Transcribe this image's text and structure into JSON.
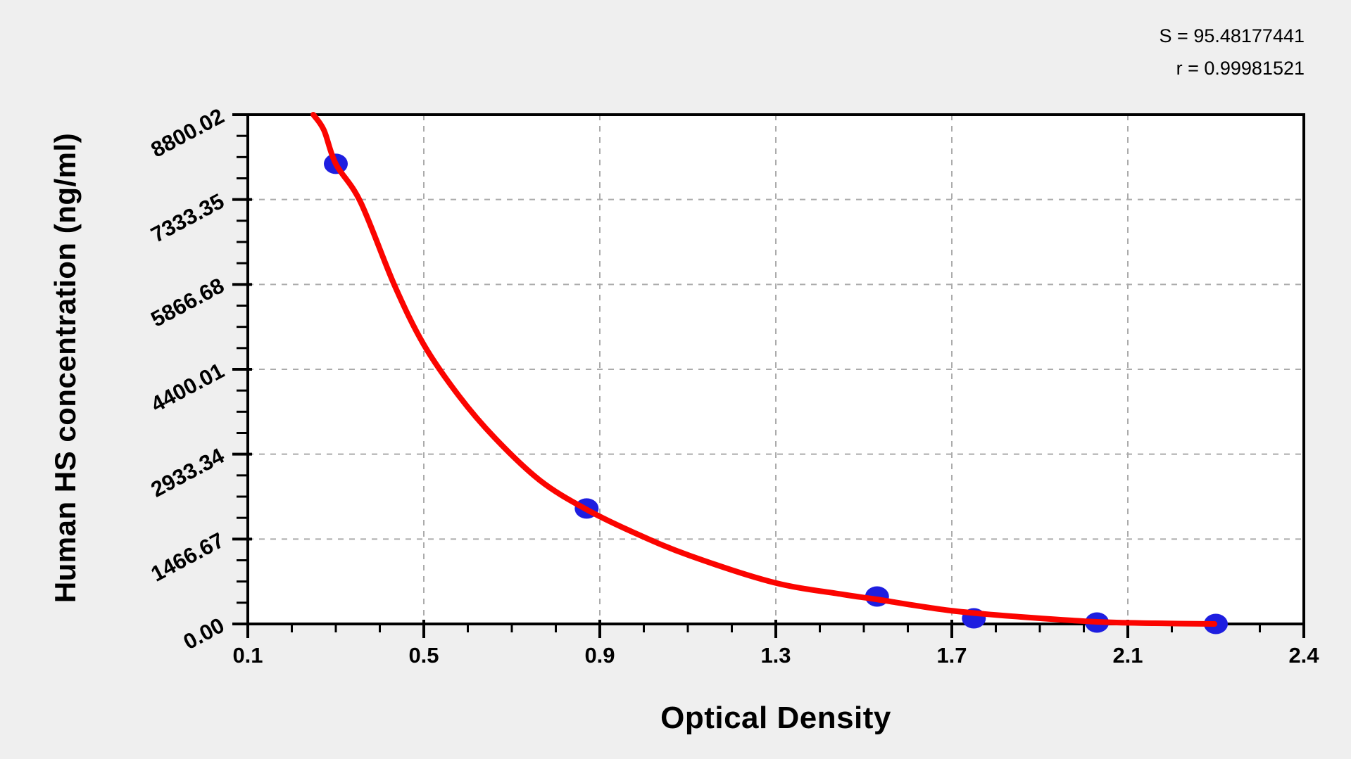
{
  "window": {
    "background": "#efefef",
    "plot_background": "#ffffff",
    "frame_color": "#000000"
  },
  "stats": {
    "s_label": "S = 95.48177441",
    "r_label": "r = 0.99981521"
  },
  "chart_data": {
    "type": "scatter",
    "title": "",
    "xlabel": "Optical Density",
    "ylabel": "Human HS concentration (ng/ml)",
    "x_tick_labels": [
      "0.1",
      "0.5",
      "0.9",
      "1.3",
      "1.7",
      "2.1",
      "2.4"
    ],
    "y_tick_labels": [
      "0.00",
      "1466.67",
      "2933.34",
      "4400.01",
      "5866.68",
      "7333.35",
      "8800.02"
    ],
    "xlim": [
      0.1,
      2.4
    ],
    "ylim": [
      0,
      8800.02
    ],
    "x_major_tick_count": 7,
    "y_major_tick_count": 7,
    "minor_intervals_per_major": 4,
    "grid": {
      "style": "dashed",
      "color": "#ababab",
      "on_major_ticks": true
    },
    "annotations": [
      "S = 95.48177441",
      "r = 0.99981521"
    ],
    "legend": "none",
    "series": [
      {
        "name": "standard-points",
        "type": "scatter",
        "color": "#1e1ee0",
        "x": [
          0.3,
          0.87,
          1.53,
          1.75,
          2.03,
          2.3
        ],
        "y": [
          7950,
          1995,
          474,
          97,
          24,
          0
        ]
      },
      {
        "name": "fitted-curve",
        "type": "line",
        "color": "#fb0400",
        "x": [
          0.249,
          0.273,
          0.3,
          0.356,
          0.433,
          0.5,
          0.58,
          0.662,
          0.764,
          0.866,
          0.977,
          1.105,
          1.295,
          1.452,
          1.529,
          1.697,
          1.857,
          2.03,
          2.161,
          2.297
        ],
        "y": [
          8800,
          8533,
          7949,
          7293,
          5859,
          4826,
          3938,
          3209,
          2480,
          1993,
          1580,
          1179,
          717,
          511,
          425,
          231,
          122,
          36,
          12,
          0
        ]
      }
    ]
  }
}
